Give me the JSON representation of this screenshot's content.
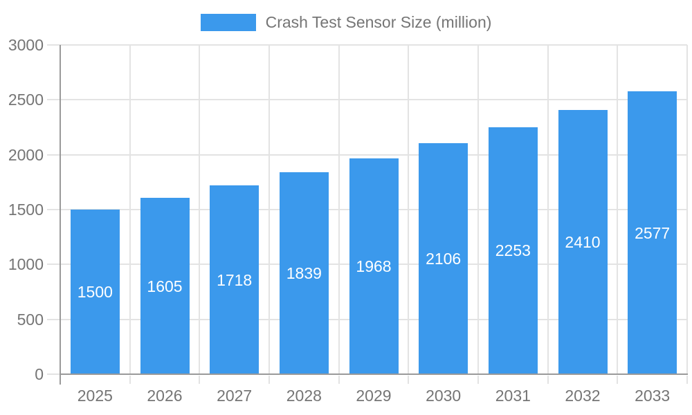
{
  "chart_data": {
    "type": "bar",
    "title": "Crash Test Sensor Size (million)",
    "legend": [
      "Crash Test Sensor Size (million)"
    ],
    "legend_position": "top",
    "categories": [
      "2025",
      "2026",
      "2027",
      "2028",
      "2029",
      "2030",
      "2031",
      "2032",
      "2033"
    ],
    "values": [
      1500,
      1605,
      1718,
      1839,
      1968,
      2106,
      2253,
      2410,
      2577
    ],
    "xlabel": "",
    "ylabel": "",
    "ylim": [
      0,
      3000
    ],
    "ytick_step": 500,
    "yticks": [
      0,
      500,
      1000,
      1500,
      2000,
      2500,
      3000
    ],
    "grid": true,
    "bar_labels_inside": true,
    "colors": {
      "bar": "#3B99EC",
      "bar_label": "#FFFFFF",
      "axis_text": "#757575",
      "grid_line": "#E3E3E3",
      "axis_line": "#999999",
      "background": "#FFFFFF"
    }
  }
}
